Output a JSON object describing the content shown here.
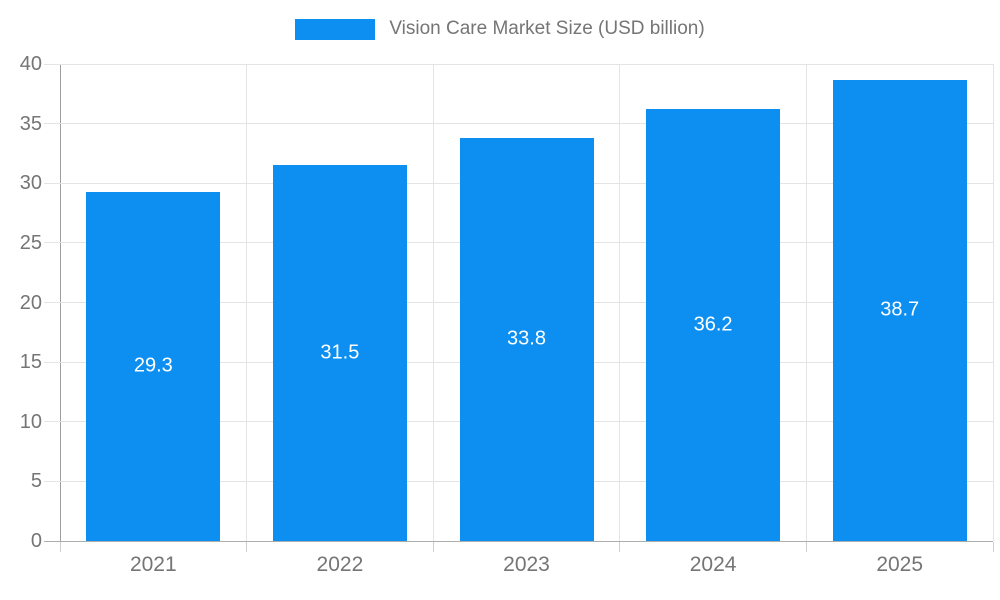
{
  "chart_data": {
    "type": "bar",
    "title": "Vision Care Market Size (USD billion)",
    "legend": {
      "position": "top",
      "entries": [
        "Vision Care Market Size (USD billion)"
      ]
    },
    "categories": [
      "2021",
      "2022",
      "2023",
      "2024",
      "2025"
    ],
    "series": [
      {
        "name": "Vision Care Market Size (USD billion)",
        "values": [
          29.3,
          31.5,
          33.8,
          36.2,
          38.7
        ]
      }
    ],
    "data_labels": [
      "29.3",
      "31.5",
      "33.8",
      "36.2",
      "38.7"
    ],
    "xlabel": "",
    "ylabel": "",
    "ylim": [
      0,
      40
    ],
    "yticks": [
      0,
      5,
      10,
      15,
      20,
      25,
      30,
      35,
      40
    ],
    "grid": true,
    "colors": {
      "bar": "#0d8ff2",
      "bar_label_text": "#ffffff",
      "axis_text": "#757575",
      "axis_line": "#9e9e9e",
      "gridline": "#e4e4e4"
    }
  }
}
